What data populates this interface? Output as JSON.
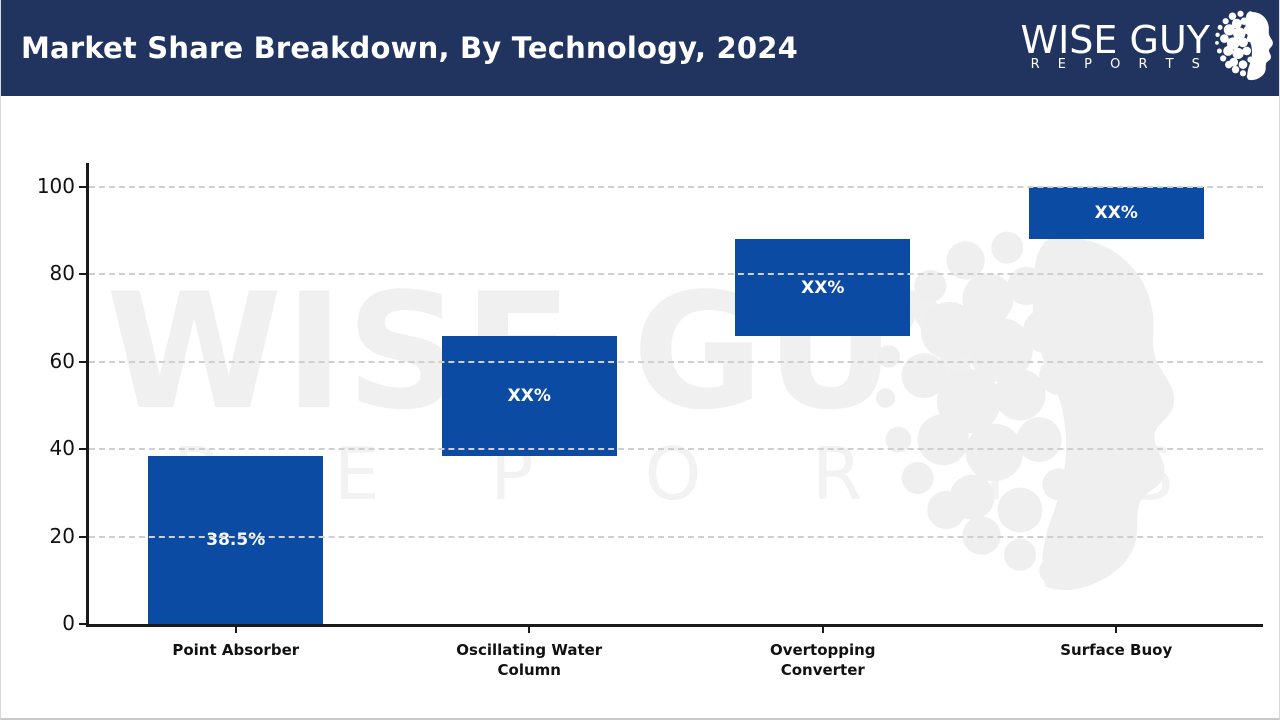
{
  "header": {
    "title": "Market Share Breakdown, By Technology, 2024",
    "logo_line1": "WISE GUY",
    "logo_line2": "R E P O R T S"
  },
  "watermark": {
    "line1": "WISE GUY",
    "line2": "R E P O R T S"
  },
  "chart_data": {
    "type": "bar",
    "subtype": "waterfall",
    "title": "Market Share Breakdown, By Technology, 2024",
    "categories": [
      "Point Absorber",
      "Oscillating Water Column",
      "Overtopping Converter",
      "Surface Buoy"
    ],
    "series": [
      {
        "name": "Market Share",
        "segments": [
          {
            "category": "Point Absorber",
            "base": 0,
            "top": 38.5,
            "label": "38.5%"
          },
          {
            "category": "Oscillating Water Column",
            "base": 38.5,
            "top": 66,
            "label": "XX%"
          },
          {
            "category": "Overtopping Converter",
            "base": 66,
            "top": 88,
            "label": "XX%"
          },
          {
            "category": "Surface Buoy",
            "base": 88,
            "top": 100,
            "label": "XX%"
          }
        ]
      }
    ],
    "y_ticks": [
      0,
      20,
      40,
      60,
      80,
      100
    ],
    "ylim": [
      0,
      105
    ],
    "xlabel": "",
    "ylabel": "",
    "grid": "dashed-horizontal",
    "legend": "none"
  },
  "colors": {
    "header_bg": "#20345f",
    "bar": "#0c4ba3",
    "bar_label": "#ffffff",
    "grid": "#cfcfcf",
    "axis": "#1a1a1a",
    "watermark": "#f0f0f0"
  }
}
